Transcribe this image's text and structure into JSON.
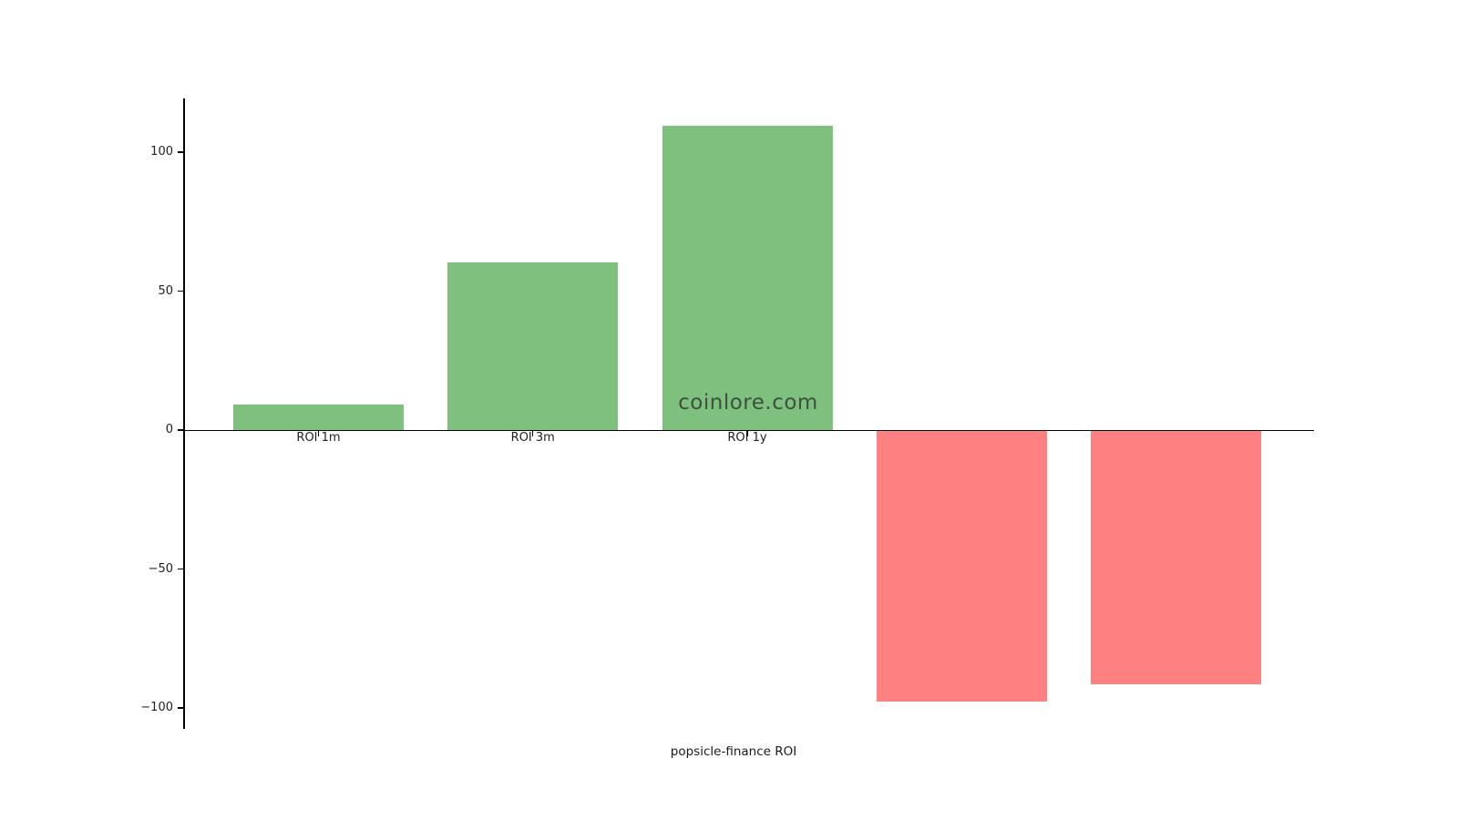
{
  "chart_data": {
    "type": "bar",
    "title": "popsicle-finance ROI",
    "watermark": "coinlore.com",
    "categories": [
      "ROI 1m",
      "ROI 3m",
      "ROI 1y",
      "",
      ""
    ],
    "values": [
      9.1,
      60.3,
      109.5,
      -97.4,
      -91.3
    ],
    "yticks": [
      100,
      50,
      0,
      -50,
      -100
    ],
    "ytick_labels": [
      "100",
      "50",
      "0",
      "−50",
      "−100"
    ],
    "ylim": [
      -107,
      119
    ],
    "xlabel": "",
    "ylabel": "",
    "grid": false,
    "legend_position": "none",
    "colors": {
      "positive_bar": "#7ec17e",
      "negative_bar": "#ff8080",
      "axis": "#000000",
      "tick_text": "#222222",
      "title_text": "#1a1a1a",
      "watermark_text": "#3e5040",
      "background": "#ffffff"
    }
  }
}
